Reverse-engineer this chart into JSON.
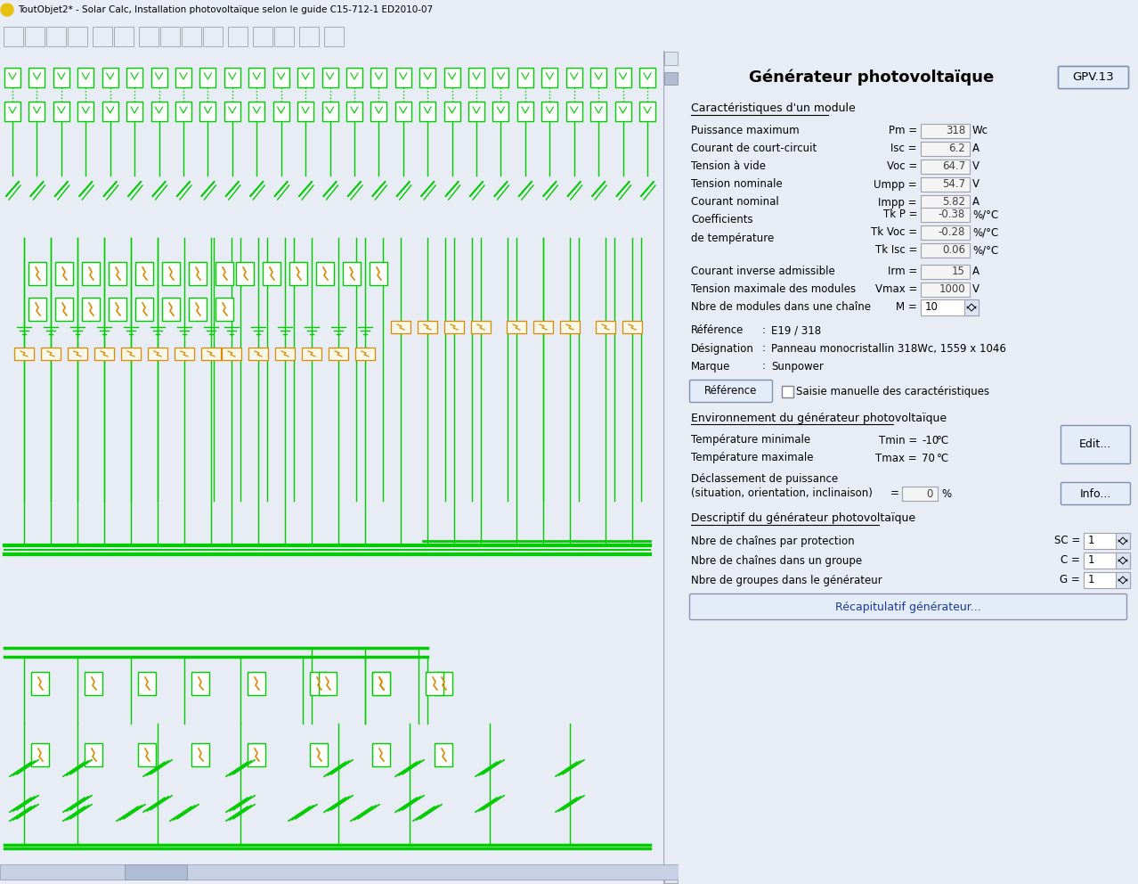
{
  "title_bar": "ToutObjet2* - Solar Calc, Installation photovoltaïque selon le guide C15-712-1 ED2010-07",
  "panel_title": "Générateur photovoltaïque",
  "panel_id": "GPV.13",
  "section1_title": "Caractéristiques d'un module",
  "section2_title": "Environnement du générateur photovoltaïque",
  "section3_title": "Descriptif du générateur photovoltaïque",
  "reference": "E19 / 318",
  "designation": "Panneau monocristallin 318Wc, 1559 x 1046",
  "marque": "Sunpower",
  "field_rows": [
    {
      "label": "Puissance maximum",
      "symbol": "Pm =",
      "value": "318",
      "unit": "Wc"
    },
    {
      "label": "Courant de court-circuit",
      "symbol": "Isc =",
      "value": "6.2",
      "unit": "A"
    },
    {
      "label": "Tension à vide",
      "symbol": "Voc =",
      "value": "64.7",
      "unit": "V"
    },
    {
      "label": "Tension nominale",
      "symbol": "Umpp =",
      "value": "54.7",
      "unit": "V"
    },
    {
      "label": "Courant nominal",
      "symbol": "Impp =",
      "value": "5.82",
      "unit": "A"
    }
  ],
  "coeff_label1": "Coefficients",
  "coeff_label2": "de température",
  "tk_rows": [
    {
      "symbol": "Tk P =",
      "value": "-0.38",
      "unit": "%/°C"
    },
    {
      "symbol": "Tk Voc =",
      "value": "-0.28",
      "unit": "%/°C"
    },
    {
      "symbol": "Tk Isc =",
      "value": "0.06",
      "unit": "%/°C"
    }
  ],
  "extra_rows": [
    {
      "label": "Courant inverse admissible",
      "symbol": "Irm =",
      "value": "15",
      "unit": "A"
    },
    {
      "label": "Tension maximale des modules",
      "symbol": "Vmax =",
      "value": "1000",
      "unit": "V"
    },
    {
      "label": "Nbre de modules dans une chaîne",
      "symbol": "M =",
      "value": "10",
      "unit": "",
      "spinbox": true
    }
  ],
  "temp_rows": [
    {
      "label": "Température minimale",
      "symbol": "Tmin =",
      "value": "-10",
      "unit": "°C"
    },
    {
      "label": "Température maximale",
      "symbol": "Tmax =",
      "value": "70",
      "unit": "°C"
    }
  ],
  "decl_label1": "Déclassement de puissance",
  "decl_label2": "(situation, orientation, inclinaison)",
  "decl_value": "0",
  "desc_rows": [
    {
      "label": "Nbre de chaînes par protection",
      "symbol": "SC =",
      "value": "1"
    },
    {
      "label": "Nbre de chaînes dans un groupe",
      "symbol": "C =",
      "value": "1"
    },
    {
      "label": "Nbre de groupes dans le générateur",
      "symbol": "G =",
      "value": "1"
    }
  ],
  "recap_btn": "Récapitulatif générateur...",
  "green": "#00cc00",
  "orange": "#dd8800",
  "bg_left": "#c8daf0",
  "bg_right": "#c0d0ec",
  "title_bg": "#e8ecf4",
  "toolbar_bg": "#dce4f0",
  "input_bg": "#f4f4f4",
  "btn_bg": "#e4ecf8",
  "white": "#ffffff"
}
